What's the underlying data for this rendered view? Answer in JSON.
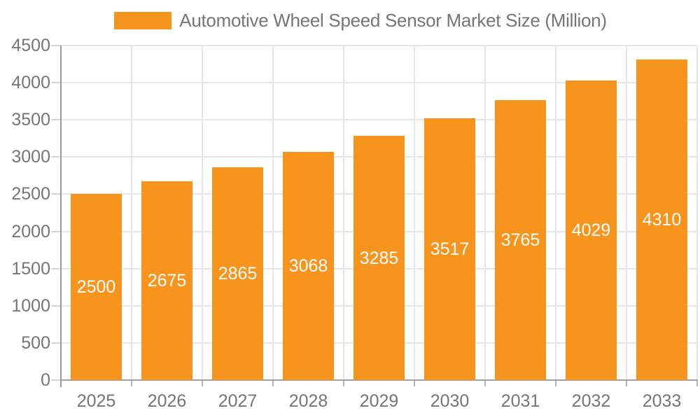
{
  "chart_data": {
    "type": "bar",
    "title": "Automotive Wheel Speed Sensor Market Size (Million)",
    "categories": [
      "2025",
      "2026",
      "2027",
      "2028",
      "2029",
      "2030",
      "2031",
      "2032",
      "2033"
    ],
    "values": [
      2500,
      2675,
      2865,
      3068,
      3285,
      3517,
      3765,
      4029,
      4310
    ],
    "series": [
      {
        "name": "Automotive Wheel Speed Sensor Market Size (Million)",
        "values": [
          2500,
          2675,
          2865,
          3068,
          3285,
          3517,
          3765,
          4029,
          4310
        ]
      }
    ],
    "xlabel": "",
    "ylabel": "",
    "ylim": [
      0,
      4500
    ],
    "ytick_step": 500,
    "yticks": [
      0,
      500,
      1000,
      1500,
      2000,
      2500,
      3000,
      3500,
      4000,
      4500
    ],
    "grid": true,
    "legend_position": "top",
    "value_label_position": "inside-center",
    "colors": {
      "bar": "#F7941D",
      "value_label": "#FFFFFF",
      "axis_text": "#757575",
      "axis_line": "#999999",
      "baseline": "#A0A0A0",
      "gridline": "#E6E6E6",
      "y_tick": "#D4D4D4",
      "x_tick": "#B5B5B5",
      "background": "#FFFFFF"
    }
  }
}
